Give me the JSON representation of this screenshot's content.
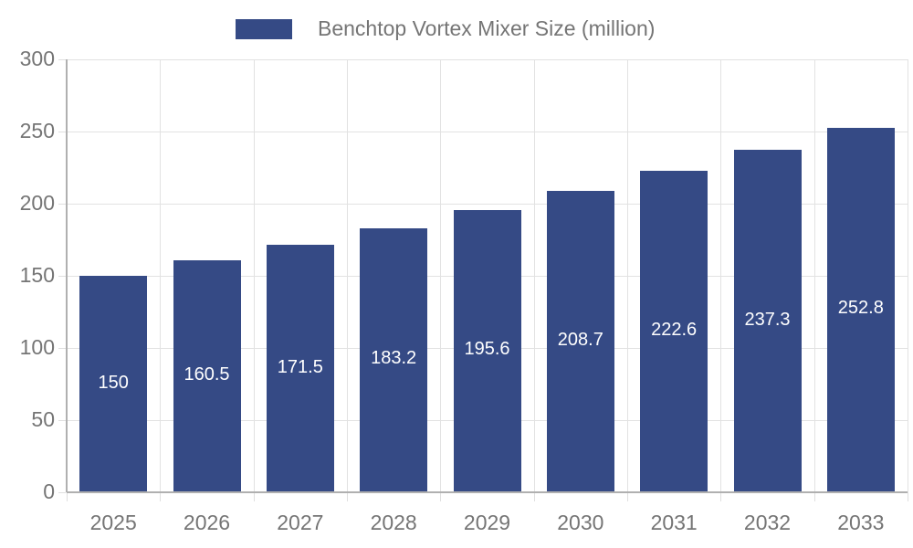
{
  "legend": {
    "label": "Benchtop Vortex Mixer Size (million)"
  },
  "colors": {
    "bar": "#354A85",
    "grid": "#E2E2E2",
    "axis": "#B0B0B0",
    "tick": "#DFDFDF",
    "axis_text": "#757575",
    "value_text": "#FFFFFF"
  },
  "chart_data": {
    "type": "bar",
    "title": "Benchtop Vortex Mixer Size (million)",
    "categories": [
      "2025",
      "2026",
      "2027",
      "2028",
      "2029",
      "2030",
      "2031",
      "2032",
      "2033"
    ],
    "values": [
      150,
      160.5,
      171.5,
      183.2,
      195.6,
      208.7,
      222.6,
      237.3,
      252.8
    ],
    "value_labels": [
      "150",
      "160.5",
      "171.5",
      "183.2",
      "195.6",
      "208.7",
      "222.6",
      "237.3",
      "252.8"
    ],
    "series": [
      {
        "name": "Benchtop Vortex Mixer Size (million)",
        "values": [
          150,
          160.5,
          171.5,
          183.2,
          195.6,
          208.7,
          222.6,
          237.3,
          252.8
        ]
      }
    ],
    "xlabel": "",
    "ylabel": "",
    "ylim": [
      0,
      300
    ],
    "yticks": [
      0,
      50,
      100,
      150,
      200,
      250,
      300
    ],
    "grid": true,
    "legend_position": "top",
    "value_label_position": "inside-center"
  }
}
